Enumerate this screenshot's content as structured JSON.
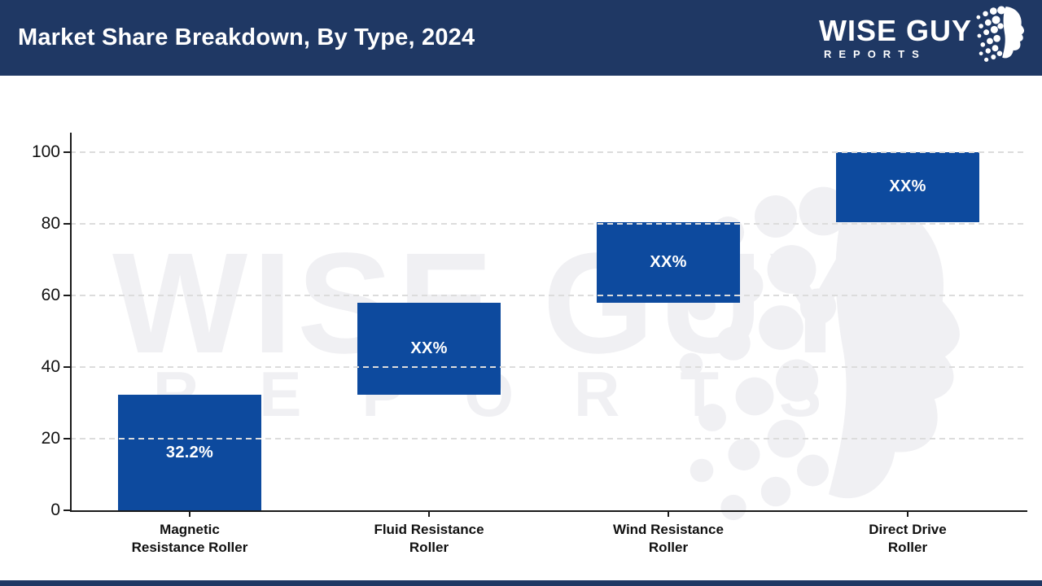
{
  "header": {
    "title": "Market Share Breakdown, By Type, 2024",
    "logo": {
      "line1": "WISE GUY",
      "line2": "REPORTS",
      "icon": "dotted-head-icon"
    }
  },
  "watermark": {
    "line1": "WISE GUY",
    "line2": "REPORTS",
    "icon": "dotted-head-watermark"
  },
  "colors": {
    "header_bg": "#1f3864",
    "bar": "#0d4a9e",
    "grid": "#dcdcdc",
    "axis": "#1a1a1a",
    "watermark": "#f0f0f3",
    "bar_value_text": "#ffffff"
  },
  "chart_data": {
    "type": "bar",
    "subtype": "waterfall",
    "title": "Market Share Breakdown, By Type, 2024",
    "xlabel": "",
    "ylabel": "",
    "ylim": [
      0,
      105
    ],
    "yticks": [
      0,
      20,
      40,
      60,
      80,
      100
    ],
    "grid": "dashed-horizontal",
    "legend": "none",
    "categories": [
      "Magnetic Resistance Roller",
      "Fluid Resistance Roller",
      "Wind Resistance Roller",
      "Direct Drive Roller"
    ],
    "bars": [
      {
        "category": "Magnetic Resistance Roller",
        "label_lines": [
          "Magnetic",
          "Resistance Roller"
        ],
        "start": 0,
        "end": 32.2,
        "value_label": "32.2%"
      },
      {
        "category": "Fluid Resistance Roller",
        "label_lines": [
          "Fluid Resistance",
          "Roller"
        ],
        "start": 32.2,
        "end": 58,
        "value_label": "XX%"
      },
      {
        "category": "Wind Resistance Roller",
        "label_lines": [
          "Wind Resistance",
          "Roller"
        ],
        "start": 58,
        "end": 80.5,
        "value_label": "XX%"
      },
      {
        "category": "Direct Drive Roller",
        "label_lines": [
          "Direct Drive",
          "Roller"
        ],
        "start": 80.5,
        "end": 100,
        "value_label": "XX%"
      }
    ]
  }
}
